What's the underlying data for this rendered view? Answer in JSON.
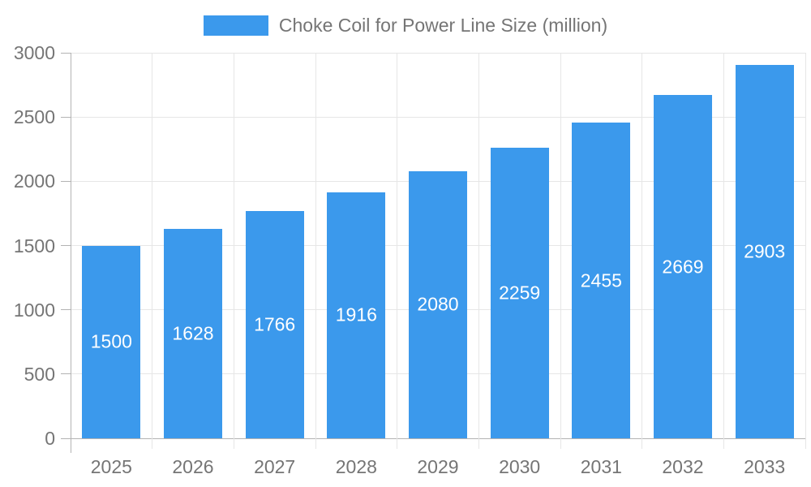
{
  "chart_data": {
    "type": "bar",
    "title": "Choke Coil for Power Line Size (million)",
    "legend": [
      "Choke Coil for Power Line Size (million)"
    ],
    "legend_position": "top-center",
    "categories": [
      "2025",
      "2026",
      "2027",
      "2028",
      "2029",
      "2030",
      "2031",
      "2032",
      "2033"
    ],
    "values": [
      1500,
      1628,
      1766,
      1916,
      2080,
      2259,
      2455,
      2669,
      2903
    ],
    "xlabel": "",
    "ylabel": "",
    "ylim": [
      0,
      3000
    ],
    "yticks": [
      0,
      500,
      1000,
      1500,
      2000,
      2500,
      3000
    ],
    "grid": true,
    "bar_value_labels": true,
    "colors": {
      "bar": "#3b99ec",
      "bar_label": "#ffffff",
      "axis_text": "#757575",
      "gridline": "#e6e6e6",
      "axis_line": "#b3b3b3",
      "background": "#ffffff"
    }
  }
}
